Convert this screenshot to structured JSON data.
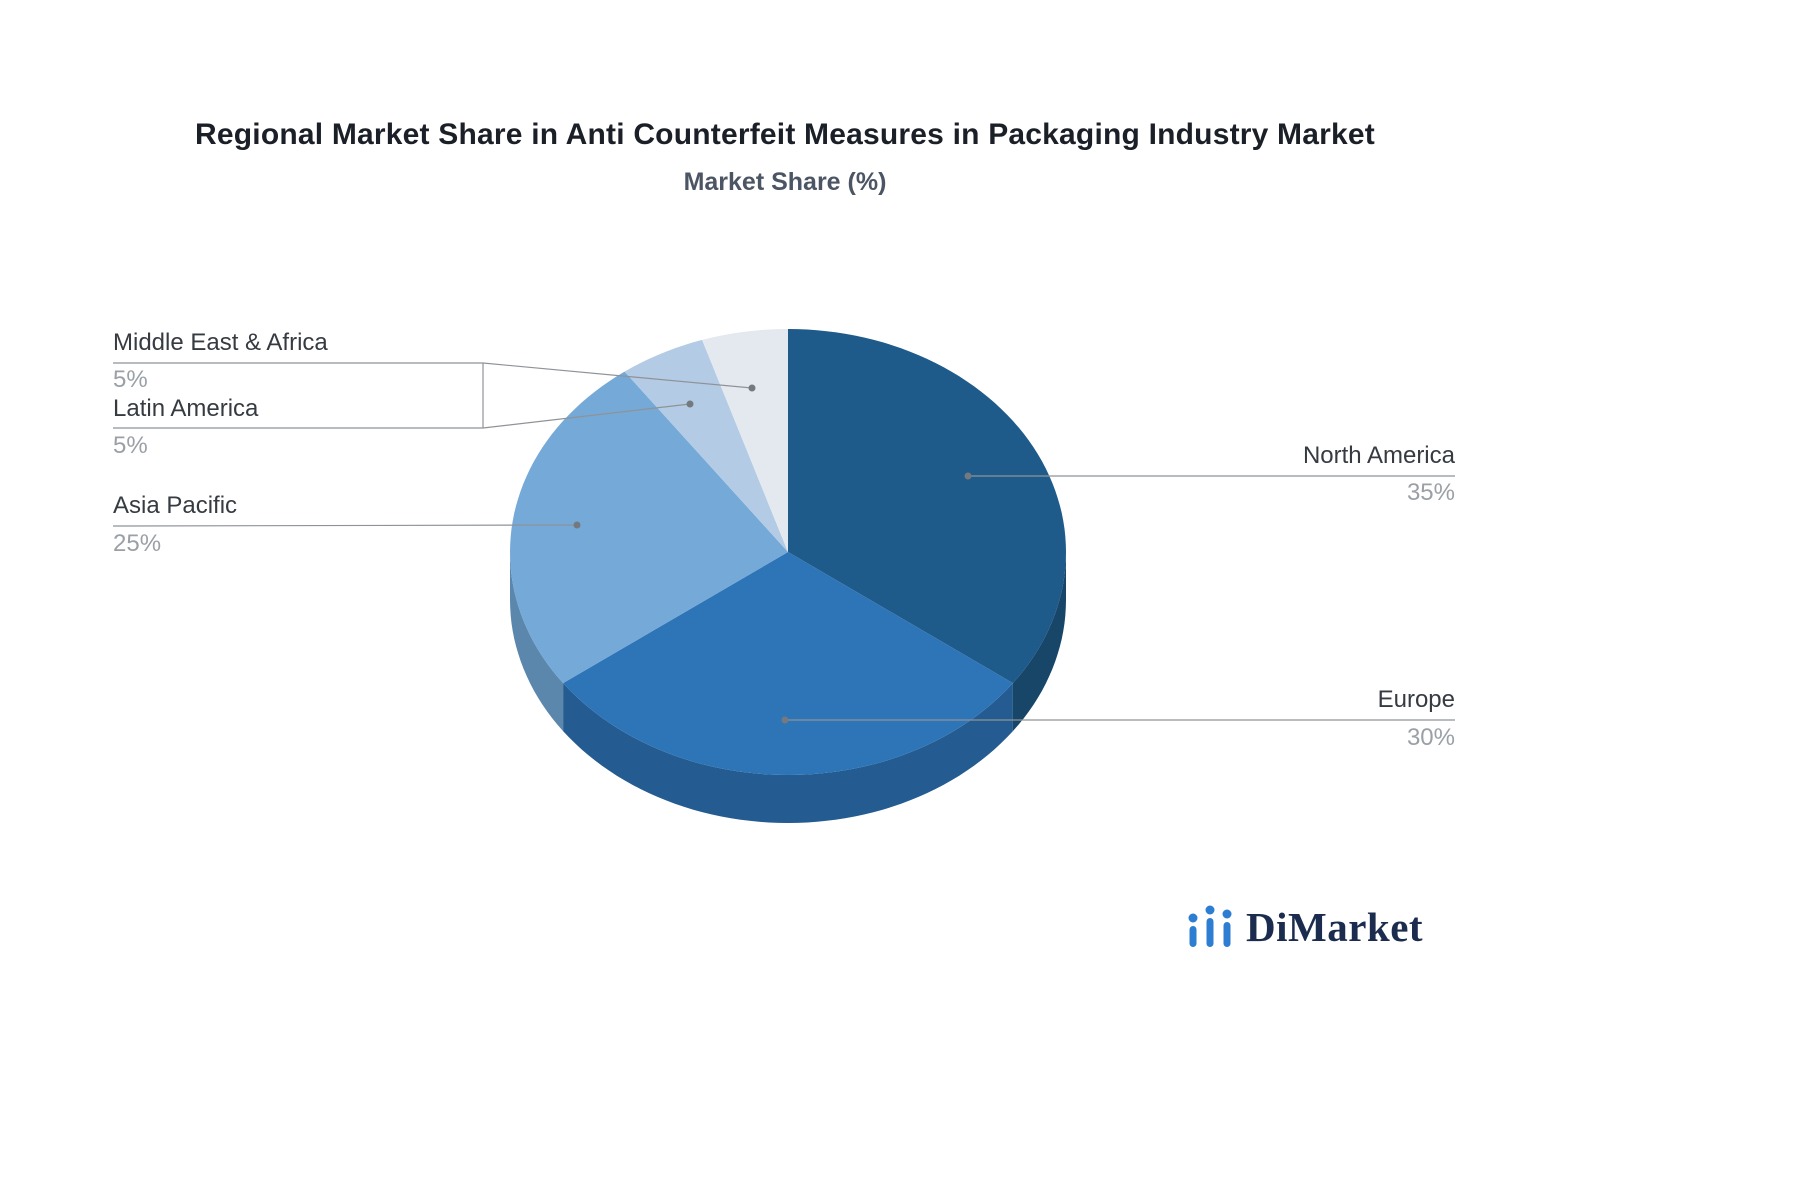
{
  "header": {
    "title": "Regional Market Share in Anti Counterfeit Measures in Packaging Industry Market",
    "subtitle": "Market Share (%)"
  },
  "chart_data": {
    "type": "pie",
    "title": "Regional Market Share in Anti Counterfeit Measures in Packaging Industry Market",
    "subtitle": "Market Share (%)",
    "unit": "%",
    "style": "3d-pie",
    "start_angle_deg": 0,
    "direction": "clockwise",
    "legend_position": "none",
    "labels_style": "callout-leader-lines",
    "total": 100,
    "slices": [
      {
        "label": "North America",
        "value": 35,
        "value_label": "35%",
        "color": "#1e5a8a",
        "side_color": "#174669"
      },
      {
        "label": "Europe",
        "value": 30,
        "value_label": "30%",
        "color": "#2e75b8",
        "side_color": "#245c91"
      },
      {
        "label": "Asia Pacific",
        "value": 25,
        "value_label": "25%",
        "color": "#74a9d8",
        "side_color": "#5b87ad"
      },
      {
        "label": "Latin America",
        "value": 5,
        "value_label": "5%",
        "color": "#b3cbe4",
        "side_color": "#92a8bf"
      },
      {
        "label": "Middle East & Africa",
        "value": 5,
        "value_label": "5%",
        "color": "#e4e9f0",
        "side_color": "#c3ccd6"
      }
    ],
    "accent_color": "#2d7dd2"
  },
  "logo": {
    "text": "DiMarket",
    "icon": "bar-chart-dots-icon"
  }
}
